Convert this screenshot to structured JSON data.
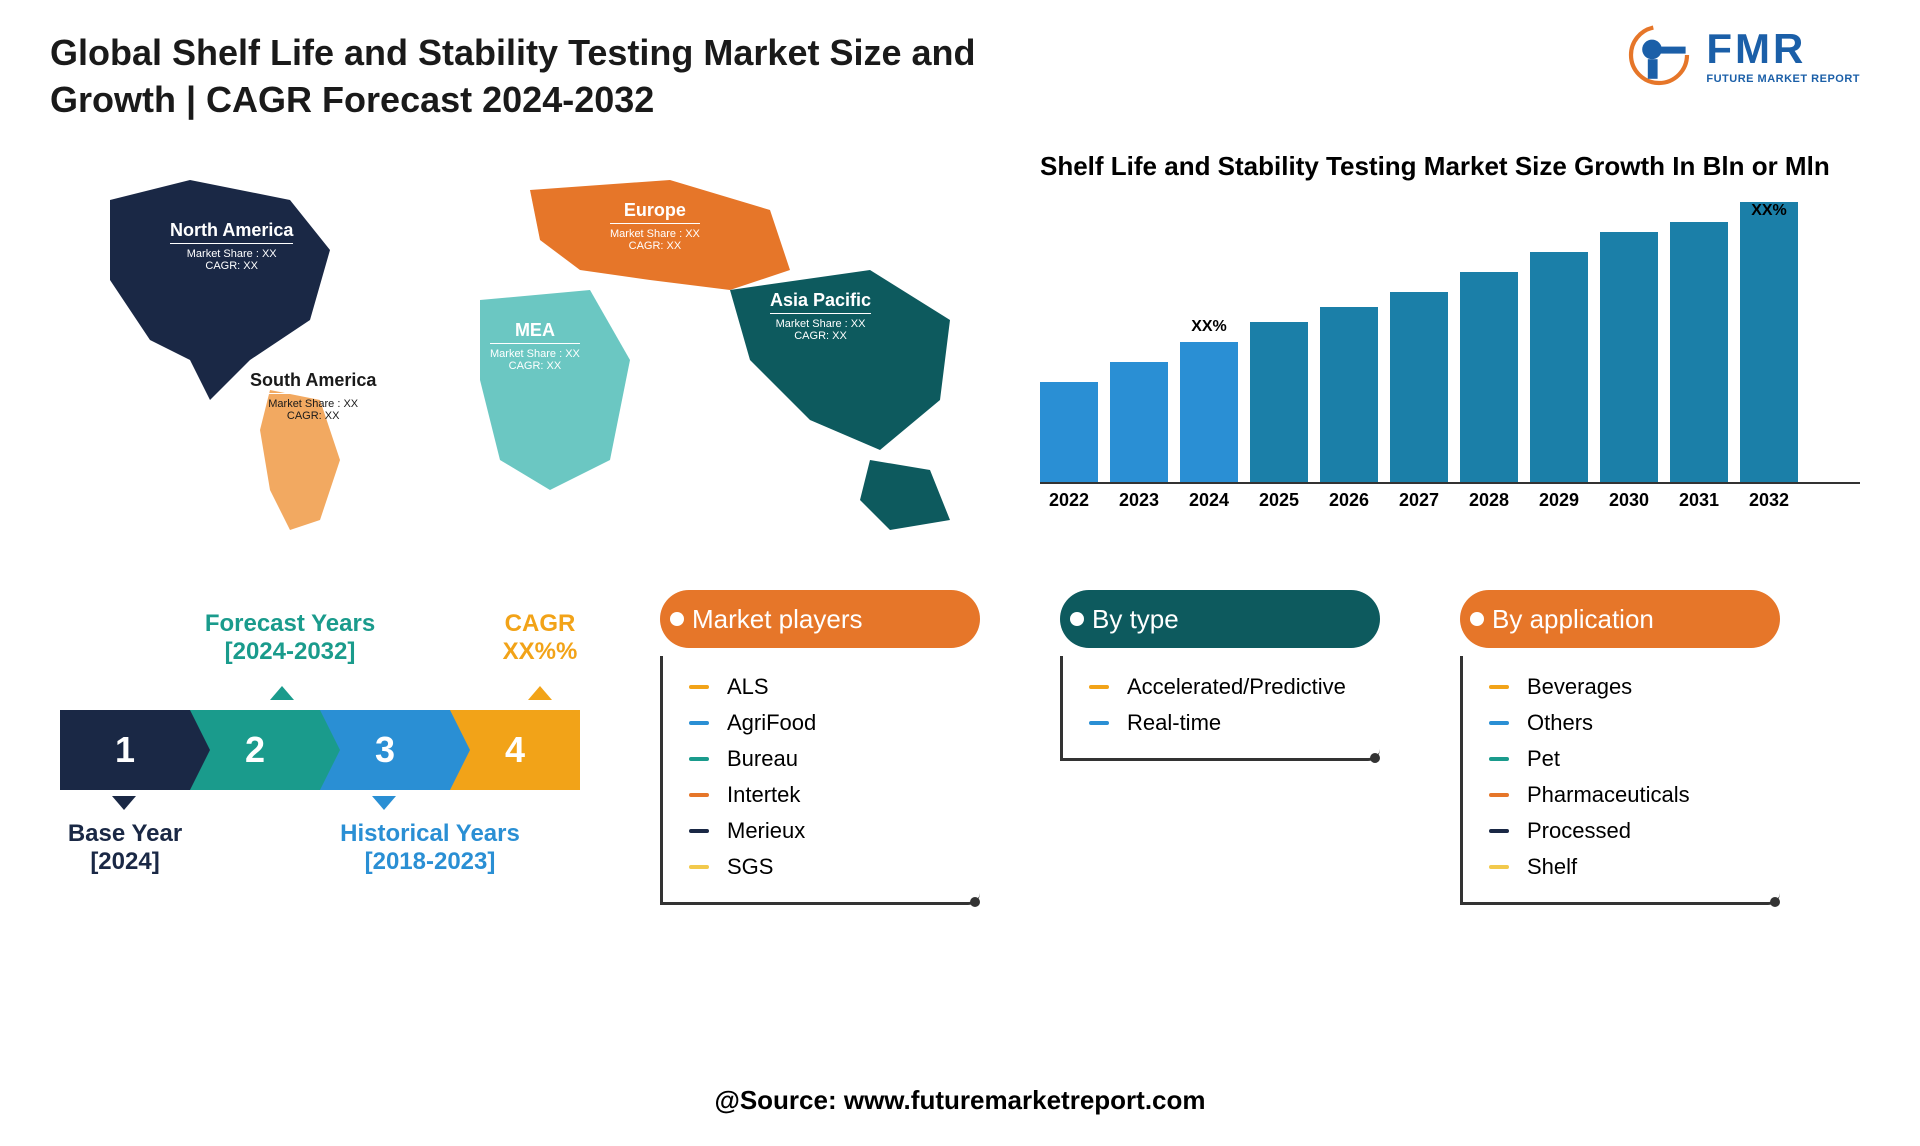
{
  "title": "Global Shelf Life and Stability Testing Market Size and Growth | CAGR Forecast 2024-2032",
  "logo": {
    "fmr": "FMR",
    "sub": "FUTURE MARKET REPORT"
  },
  "map": {
    "regions": [
      {
        "name": "North America",
        "share": "Market Share : XX",
        "cagr": "CAGR: XX",
        "color": "#1a2845"
      },
      {
        "name": "South America",
        "share": "Market Share : XX",
        "cagr": "CAGR: XX",
        "color": "#f2a961"
      },
      {
        "name": "Europe",
        "share": "Market Share : XX",
        "cagr": "CAGR: XX",
        "color": "#e67629"
      },
      {
        "name": "MEA",
        "share": "Market Share : XX",
        "cagr": "CAGR: XX",
        "color": "#6bc7c2"
      },
      {
        "name": "Asia Pacific",
        "share": "Market Share : XX",
        "cagr": "CAGR: XX",
        "color": "#0d5a5e"
      }
    ]
  },
  "chart": {
    "title": "Shelf Life and Stability Testing Market Size Growth In Bln or Mln",
    "type": "bar",
    "years": [
      "2022",
      "2023",
      "2024",
      "2025",
      "2026",
      "2027",
      "2028",
      "2029",
      "2030",
      "2031",
      "2032"
    ],
    "values": [
      100,
      120,
      140,
      160,
      175,
      190,
      210,
      230,
      250,
      260,
      280
    ],
    "colors": [
      "#2a8fd4",
      "#2a8fd4",
      "#2a8fd4",
      "#1b7fa8",
      "#1b7fa8",
      "#1b7fa8",
      "#1b7fa8",
      "#1b7fa8",
      "#1b7fa8",
      "#1b7fa8",
      "#1b7fa8"
    ],
    "max_height": 280,
    "annot_2024": "XX%",
    "annot_2032": "XX%"
  },
  "timeline": {
    "forecast_label": "Forecast Years",
    "forecast_range": "[2024-2032]",
    "cagr_label": "CAGR",
    "cagr_value": "XX%%",
    "base_label": "Base Year",
    "base_range": "[2024]",
    "hist_label": "Historical Years",
    "hist_range": "[2018-2023]",
    "segments": [
      {
        "num": "1",
        "color": "#1a2845"
      },
      {
        "num": "2",
        "color": "#1a9b8c"
      },
      {
        "num": "3",
        "color": "#2a8fd4"
      },
      {
        "num": "4",
        "color": "#f2a318"
      }
    ]
  },
  "lists": {
    "players": {
      "title": "Market players",
      "pill_color": "#e67629",
      "items": [
        "ALS",
        "AgriFood",
        "Bureau",
        "Intertek",
        "Merieux",
        "SGS"
      ],
      "bullets": [
        "#f2a318",
        "#2a8fd4",
        "#1a9b8c",
        "#e67629",
        "#1a2845",
        "#f2c94c"
      ]
    },
    "bytype": {
      "title": "By type",
      "pill_color": "#0d5a5e",
      "items": [
        "Accelerated/Predictive",
        "Real-time"
      ],
      "bullets": [
        "#f2a318",
        "#2a8fd4"
      ]
    },
    "byapp": {
      "title": "By application",
      "pill_color": "#e67629",
      "items": [
        "Beverages",
        "Others",
        "Pet",
        "Pharmaceuticals",
        "Processed",
        "Shelf"
      ],
      "bullets": [
        "#f2a318",
        "#2a8fd4",
        "#1a9b8c",
        "#e67629",
        "#1a2845",
        "#f2c94c"
      ]
    }
  },
  "source": "@Source: www.futuremarketreport.com"
}
